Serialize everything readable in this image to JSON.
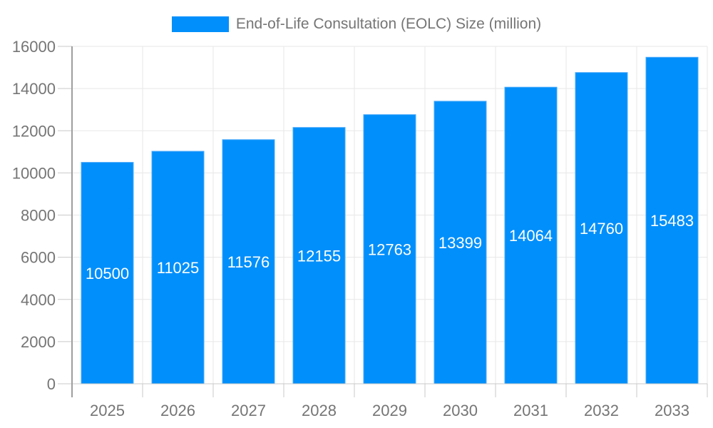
{
  "legend": {
    "label": "End-of-Life Consultation (EOLC) Size (million)"
  },
  "chart_data": {
    "type": "bar",
    "title": "End-of-Life Consultation (EOLC) Size (million)",
    "categories": [
      "2025",
      "2026",
      "2027",
      "2028",
      "2029",
      "2030",
      "2031",
      "2032",
      "2033"
    ],
    "values": [
      10500,
      11025,
      11576,
      12155,
      12763,
      13399,
      14064,
      14760,
      15483
    ],
    "xlabel": "",
    "ylabel": "",
    "ylim": [
      0,
      16000
    ],
    "ytick_step": 2000,
    "yticks": [
      "0",
      "2000",
      "4000",
      "6000",
      "8000",
      "10000",
      "12000",
      "14000",
      "16000"
    ],
    "grid": true,
    "legend_position": "top",
    "bar_color": "#008FFB",
    "bar_edge_color": "#4dabfb",
    "value_label_color": "#ffffff",
    "axis_text_color": "#757575",
    "gridline_color": "#e7e7e7",
    "axis_line_color": "#9e9e9e",
    "tick_color": "#c9c9c9"
  }
}
